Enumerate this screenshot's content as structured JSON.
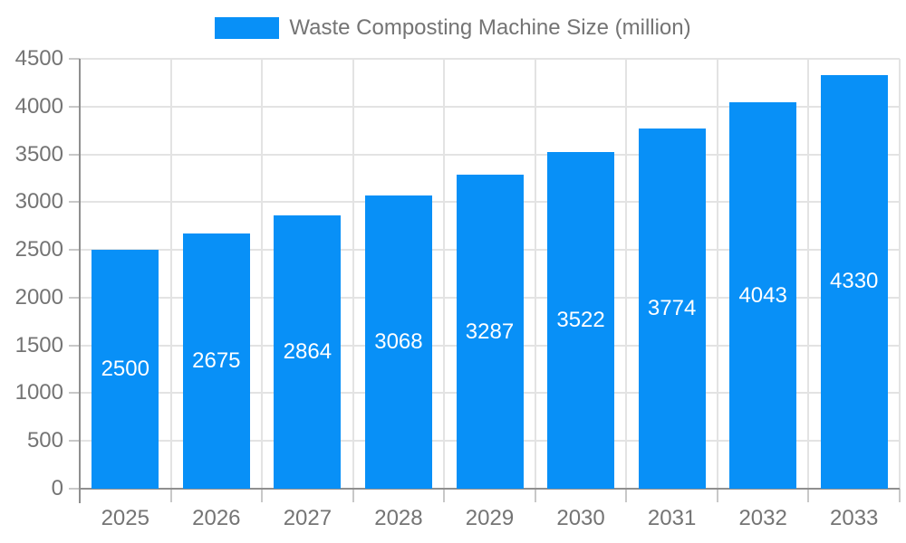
{
  "chart_data": {
    "type": "bar",
    "title": "Waste Composting Machine Size (million)",
    "categories": [
      "2025",
      "2026",
      "2027",
      "2028",
      "2029",
      "2030",
      "2031",
      "2032",
      "2033"
    ],
    "series": [
      {
        "name": "Waste Composting Machine Size (million)",
        "values": [
          2500,
          2675,
          2864,
          3068,
          3287,
          3522,
          3774,
          4043,
          4330
        ]
      }
    ],
    "xlabel": "",
    "ylabel": "",
    "ylim": [
      0,
      4500
    ],
    "yticks": [
      0,
      500,
      1000,
      1500,
      2000,
      2500,
      3000,
      3500,
      4000,
      4500
    ],
    "grid": true,
    "legend_position": "top",
    "bar_value_labels_visible": true,
    "colors": {
      "bar": "#0890f7",
      "bar_label": "#ffffff",
      "axis_text": "#747474",
      "axis_line": "#8f8f8f",
      "gridline": "#e3e3e3",
      "tick": "#c8c8c8",
      "background": "#ffffff"
    }
  }
}
